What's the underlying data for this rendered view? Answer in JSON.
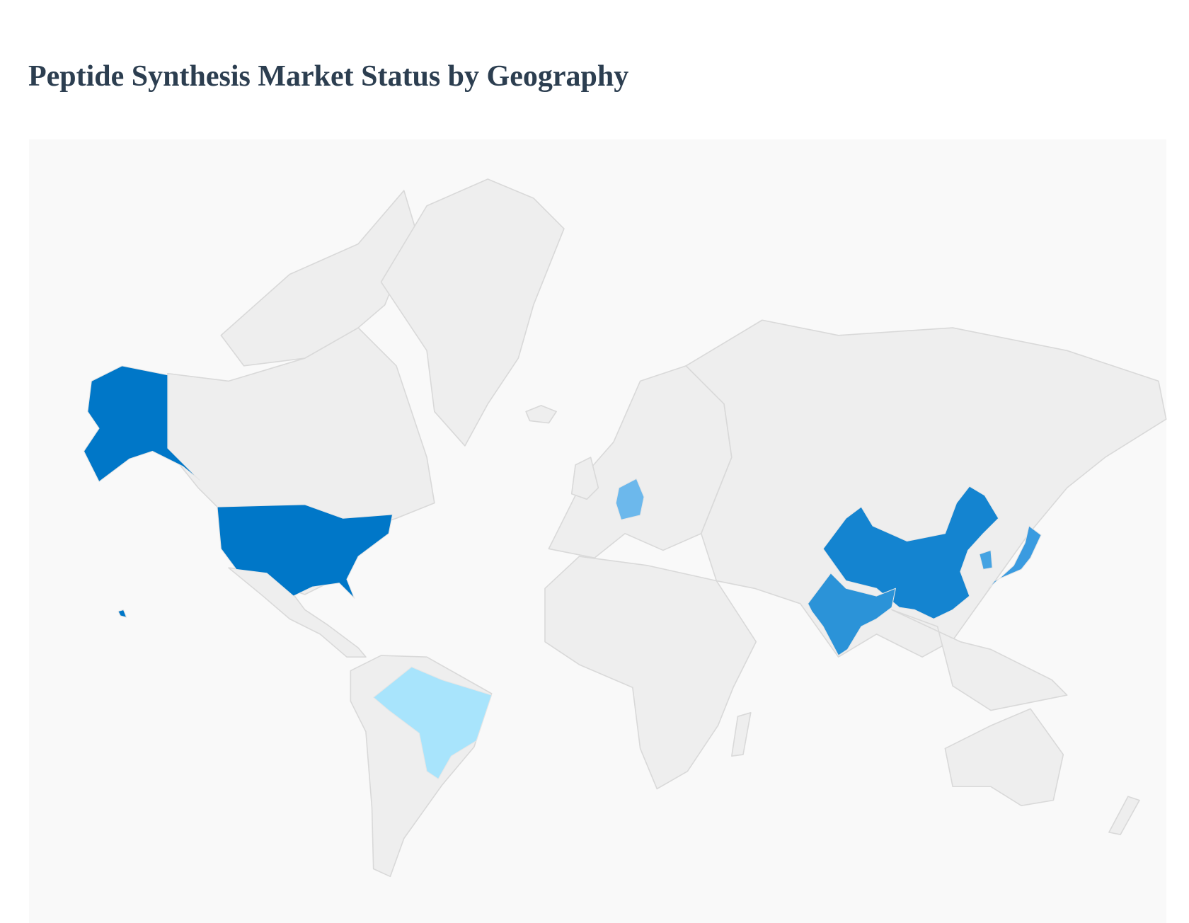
{
  "title": "Peptide Synthesis Market Status by Geography",
  "map": {
    "type": "choropleth-world",
    "base_color": "#eeeeee",
    "background_color": "#f9f9f9",
    "highlighted_regions": [
      {
        "country": "United States",
        "color": "#0077c8"
      },
      {
        "country": "China",
        "color": "#1484d0"
      },
      {
        "country": "India",
        "color": "#2b93d8"
      },
      {
        "country": "Japan",
        "color": "#3a9be0"
      },
      {
        "country": "South Korea",
        "color": "#45a3e2"
      },
      {
        "country": "Germany",
        "color": "#6cb8ec"
      },
      {
        "country": "Brazil",
        "color": "#a8e4fc"
      }
    ]
  }
}
